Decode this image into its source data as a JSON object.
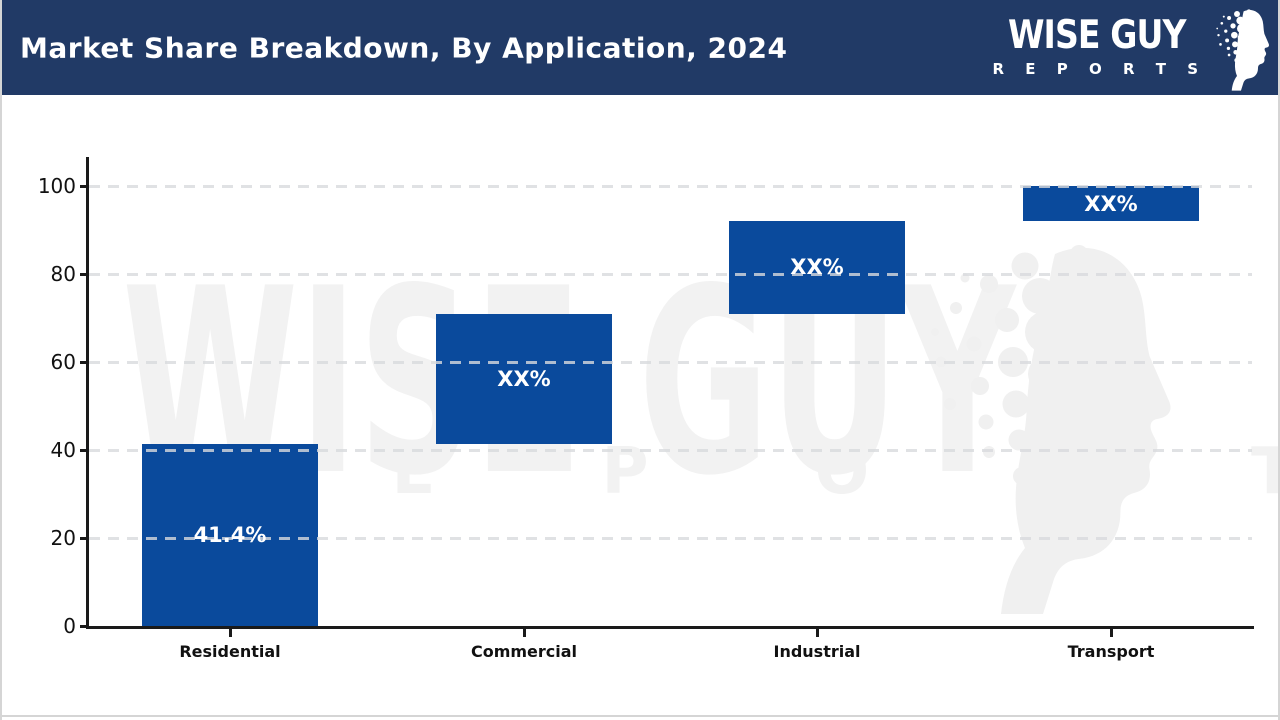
{
  "header": {
    "title": "Market Share Breakdown, By Application, 2024",
    "bg_color": "#213a66",
    "logo": {
      "wordmark": "WISE GUY",
      "subtitle": "R E P O R T S"
    }
  },
  "watermark": {
    "line1": "WISE GUY",
    "line2": "R E P O R T S"
  },
  "chart_data": {
    "type": "bar",
    "subtype": "waterfall",
    "title": "Market Share Breakdown, By Application, 2024",
    "categories": [
      "Residential",
      "Commercial",
      "Industrial",
      "Transport"
    ],
    "segments": [
      {
        "category": "Residential",
        "start": 0,
        "end": 41.4,
        "label": "41.4%"
      },
      {
        "category": "Commercial",
        "start": 41.4,
        "end": 71,
        "label": "XX%"
      },
      {
        "category": "Industrial",
        "start": 71,
        "end": 92,
        "label": "XX%"
      },
      {
        "category": "Transport",
        "start": 92,
        "end": 100,
        "label": "XX%"
      }
    ],
    "xlabel": "",
    "ylabel": "",
    "ylim": [
      0,
      100
    ],
    "yticks": [
      "0",
      "20",
      "40",
      "60",
      "80",
      "100"
    ],
    "grid": "horizontal-dashed",
    "legend": "none",
    "bar_color": "#0a4a9c",
    "bar_label_color": "#ffffff",
    "axis_color": "#1a1a1a"
  }
}
